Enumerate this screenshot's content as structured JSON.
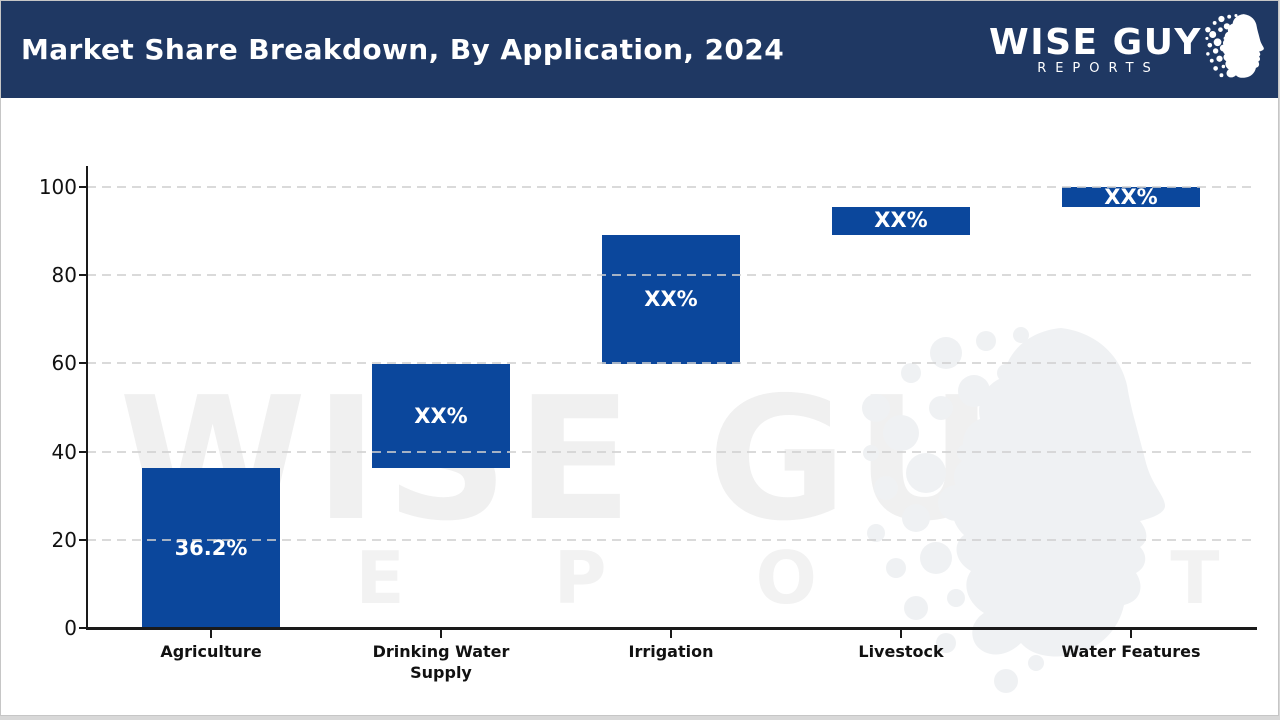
{
  "header": {
    "title": "Market Share Breakdown, By Application, 2024",
    "logo": {
      "line1": "WISE GUY",
      "line2": "REPORTS"
    }
  },
  "watermark": {
    "line1": "WISE GUY",
    "line2": "R E P O R T S"
  },
  "chart_data": {
    "type": "bar",
    "subtype": "waterfall",
    "title": "Market Share Breakdown, By Application, 2024",
    "xlabel": "",
    "ylabel": "",
    "categories": [
      "Agriculture",
      "Drinking Water Supply",
      "Irrigation",
      "Livestock",
      "Water Features"
    ],
    "segments": [
      {
        "category": "Agriculture",
        "start": 0,
        "end": 36.2,
        "value_label": "36.2%"
      },
      {
        "category": "Drinking Water Supply",
        "start": 36.2,
        "end": 59.8,
        "value_label": "XX%"
      },
      {
        "category": "Irrigation",
        "start": 59.8,
        "end": 89.2,
        "value_label": "XX%"
      },
      {
        "category": "Livestock",
        "start": 89.2,
        "end": 95.4,
        "value_label": "XX%"
      },
      {
        "category": "Water Features",
        "start": 95.4,
        "end": 100,
        "value_label": "XX%"
      }
    ],
    "yticks": [
      0,
      20,
      40,
      60,
      80,
      100
    ],
    "ylim": [
      0,
      105
    ],
    "grid": "horizontal-dashed",
    "legend": "none",
    "colors": {
      "bar": "#0b479c",
      "bar_label": "#ffffff",
      "header_bg": "#1f3863",
      "axis": "#1a1a1a",
      "gridline": "#d0d0d0",
      "watermark": "#f0f0f0"
    }
  }
}
